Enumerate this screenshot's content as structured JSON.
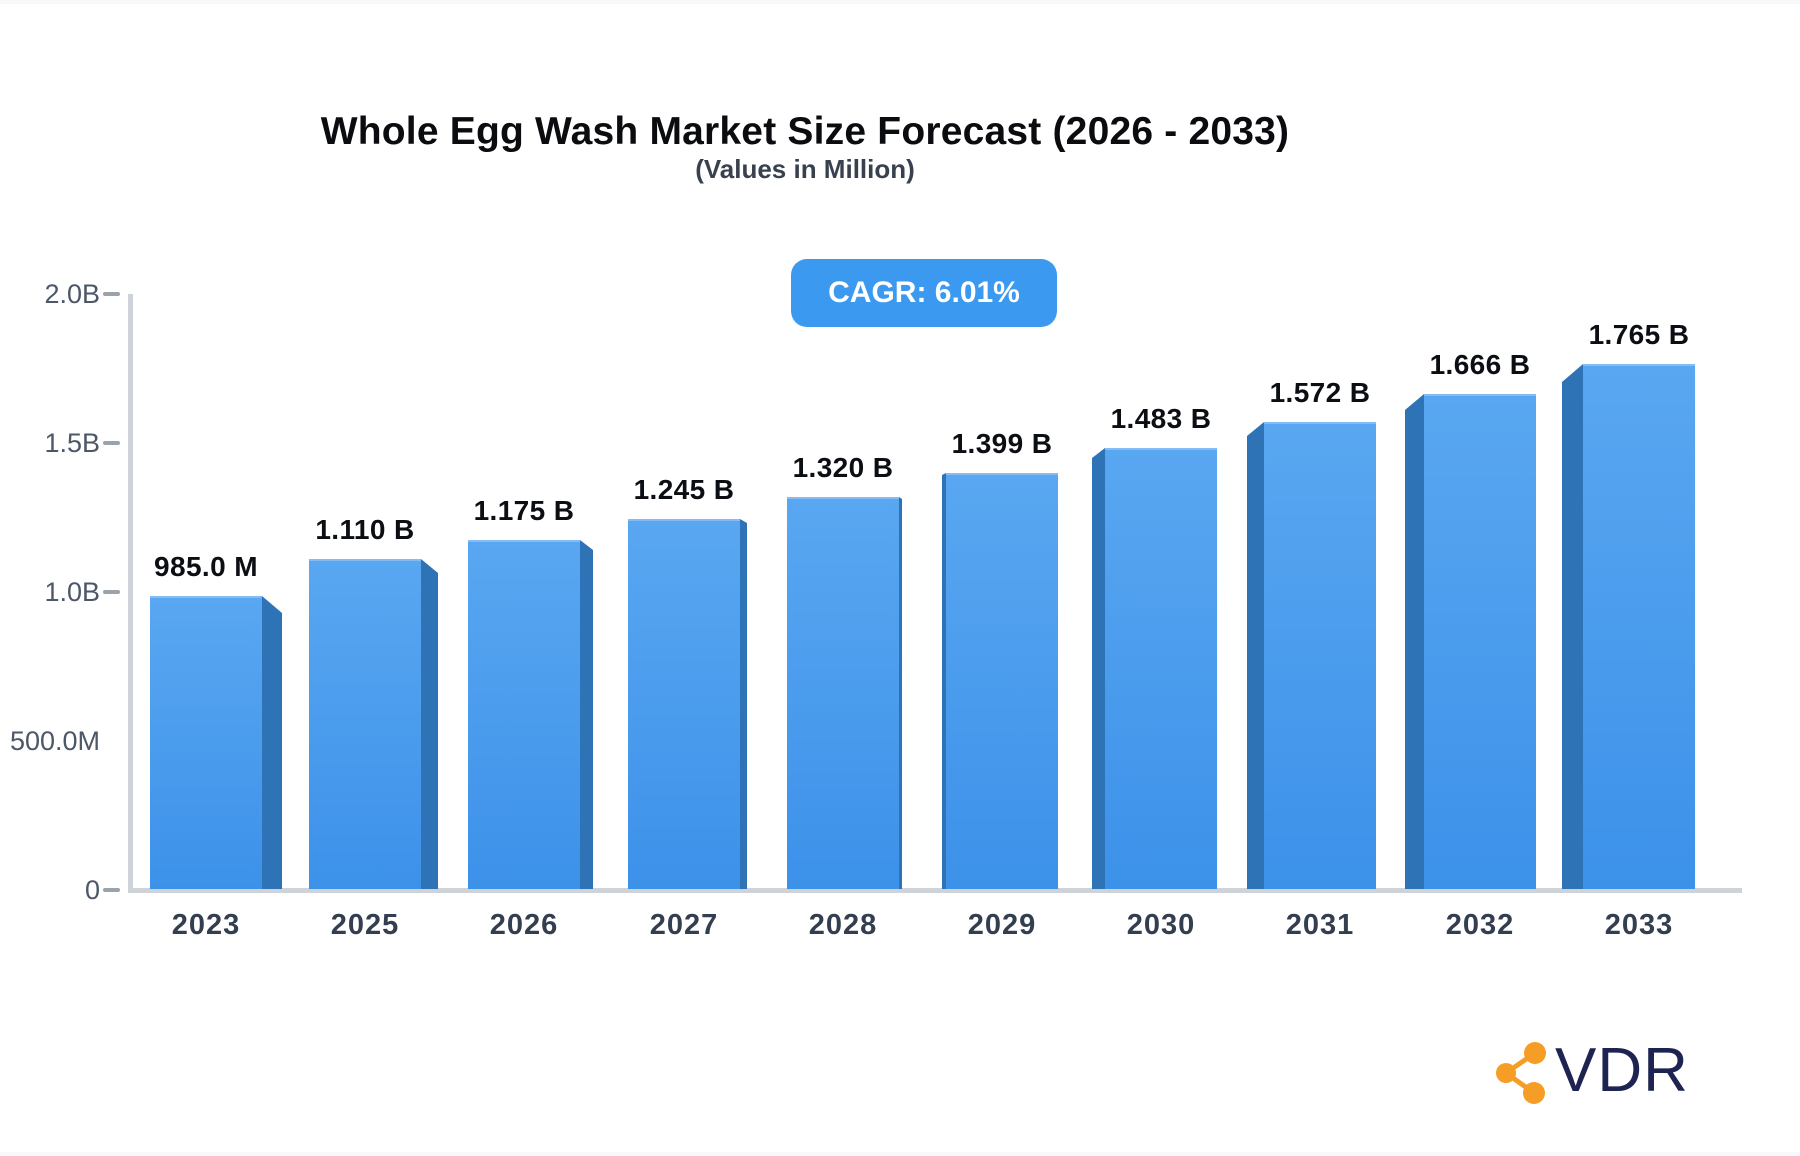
{
  "header": {
    "title": "Whole Egg Wash Market Size Forecast (2026 - 2033)",
    "subtitle": "(Values in Million)",
    "cagr_label": "CAGR: 6.01%"
  },
  "logo": {
    "text": "VDR",
    "icon": "share-network-icon"
  },
  "colors": {
    "badge_bg": "#3B9AF0",
    "bar_face_top": "#59A7F1",
    "bar_face_bottom": "#3C91E9",
    "bar_side": "#2D73B6",
    "bar_top_edge": "#85BCF5",
    "axis": "#CDD3D9",
    "tick": "#99A2AD",
    "logo_navy": "#1D2452",
    "logo_orange": "#F59D24"
  },
  "chart_data": {
    "type": "bar",
    "title": "Whole Egg Wash Market Size Forecast (2026 - 2033)",
    "subtitle": "(Values in Million)",
    "cagr_percent": "6.01%",
    "categories": [
      "2023",
      "2025",
      "2026",
      "2027",
      "2028",
      "2029",
      "2030",
      "2031",
      "2032",
      "2033"
    ],
    "values_millions": [
      985,
      1110,
      1175,
      1245,
      1320,
      1399,
      1483,
      1572,
      1666,
      1765
    ],
    "bar_labels": [
      "985.0 M",
      "1.110 B",
      "1.175 B",
      "1.245 B",
      "1.320 B",
      "1.399 B",
      "1.483 B",
      "1.572 B",
      "1.666 B",
      "1.765 B"
    ],
    "xlabel": "",
    "ylabel": "",
    "ylim_millions": [
      0,
      2000
    ],
    "grid": false,
    "legend": false,
    "y_axis": {
      "ticks": [
        {
          "label": "2.0B",
          "value_m": 2000,
          "dash": true
        },
        {
          "label": "1.5B",
          "value_m": 1500,
          "dash": true
        },
        {
          "label": "1.0B",
          "value_m": 1000,
          "dash": true
        },
        {
          "label": "500.0M",
          "value_m": 500,
          "dash": false
        },
        {
          "label": "0",
          "value_m": 0,
          "dash": true
        }
      ]
    }
  }
}
